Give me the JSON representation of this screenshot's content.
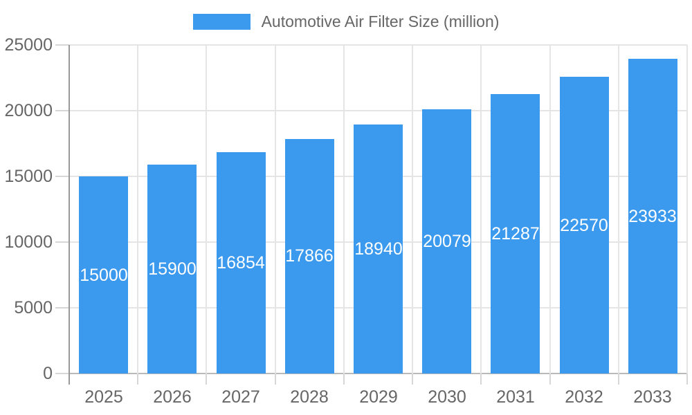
{
  "legend": {
    "label": "Automotive Air Filter Size (million)"
  },
  "chart_data": {
    "type": "bar",
    "title": "Automotive Air Filter Size (million)",
    "series_name": "Automotive Air Filter Size (million)",
    "categories": [
      "2025",
      "2026",
      "2027",
      "2028",
      "2029",
      "2030",
      "2031",
      "2032",
      "2033"
    ],
    "values": [
      15000,
      15900,
      16854,
      17866,
      18940,
      20079,
      21287,
      22570,
      23933
    ],
    "value_labels_shown": [
      15000,
      15900,
      16854,
      17866,
      18940,
      20079,
      21287,
      22570,
      23933
    ],
    "xlabel": "",
    "ylabel": "",
    "ylim": [
      0,
      25000
    ],
    "yticks": [
      0,
      5000,
      10000,
      15000,
      20000,
      25000
    ],
    "grid": true,
    "legend_position": "top-center",
    "value_label_position": "inside-center"
  },
  "colors": {
    "bar": "#3B99EE",
    "grid_line": "#E5E5E5",
    "zero_line": "#B9B9B9",
    "axis_line": "#999999",
    "tick_mark": "#D6D6D6",
    "axis_text": "#666666",
    "value_text": "#FFFFFF",
    "background": "#FFFFFF"
  }
}
